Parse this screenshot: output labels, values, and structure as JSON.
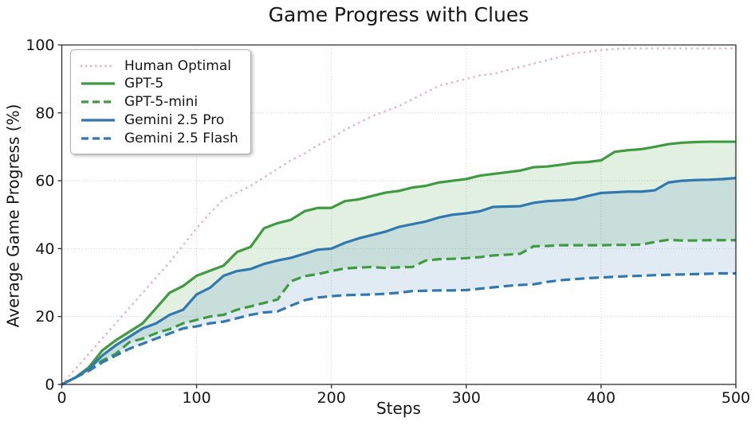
{
  "chart_data": {
    "type": "line",
    "title": "Game Progress with Clues",
    "xlabel": "Steps",
    "ylabel": "Average Game Progress (%)",
    "xlim": [
      0,
      500
    ],
    "ylim": [
      0,
      100
    ],
    "x_ticks": [
      0,
      100,
      200,
      300,
      400,
      500
    ],
    "y_ticks": [
      0,
      20,
      40,
      60,
      80,
      100
    ],
    "grid": true,
    "legend_position": "upper-left",
    "x": [
      0,
      10,
      20,
      30,
      40,
      50,
      60,
      70,
      80,
      90,
      100,
      110,
      120,
      130,
      140,
      150,
      160,
      170,
      180,
      190,
      200,
      210,
      220,
      230,
      240,
      250,
      260,
      270,
      280,
      290,
      300,
      310,
      320,
      330,
      340,
      350,
      360,
      370,
      380,
      390,
      400,
      410,
      420,
      430,
      440,
      450,
      460,
      470,
      480,
      490,
      500
    ],
    "series": [
      {
        "name": "Human Optimal",
        "color": "#efafbe",
        "style": "dotted",
        "width": 2.7,
        "values": [
          0,
          4.5,
          9,
          13.5,
          18,
          22.5,
          27,
          31.5,
          36,
          41,
          46,
          50.5,
          54.5,
          56.5,
          58.5,
          61,
          63.5,
          66,
          68,
          70.5,
          72.5,
          75,
          77,
          79,
          80.5,
          82,
          84,
          86,
          88,
          89,
          90,
          91,
          91.5,
          92.5,
          93.5,
          94.5,
          95.5,
          96.5,
          97.5,
          98,
          98.5,
          98.8,
          99,
          99,
          99,
          99,
          99,
          99,
          99,
          99,
          99
        ]
      },
      {
        "name": "GPT-5",
        "color": "#3f9b3f",
        "style": "solid",
        "width": 3.2,
        "values": [
          0,
          2,
          5,
          10,
          13,
          15.5,
          18,
          22.5,
          27,
          29,
          32,
          33.5,
          35,
          39,
          40.5,
          46,
          47.5,
          48.5,
          51,
          52,
          52,
          54,
          54.5,
          55.5,
          56.5,
          57,
          58,
          58.5,
          59.5,
          60,
          60.5,
          61.5,
          62,
          62.5,
          63,
          64,
          64.2,
          64.7,
          65.3,
          65.5,
          66,
          68.5,
          69,
          69.3,
          70,
          70.8,
          71.2,
          71.4,
          71.5,
          71.5,
          71.5
        ]
      },
      {
        "name": "GPT-5-mini",
        "color": "#3f9b3f",
        "style": "dashed",
        "width": 3.2,
        "values": [
          0,
          2,
          4.5,
          7,
          9,
          12.4,
          13.5,
          15.1,
          16.3,
          18,
          19,
          20,
          20.5,
          22,
          23,
          24,
          25,
          30.4,
          31.9,
          32.5,
          33.4,
          34.2,
          34.4,
          34.6,
          34.3,
          34.5,
          34.6,
          36.5,
          36.9,
          37,
          37.2,
          37.5,
          38,
          38.2,
          38.5,
          40.7,
          40.8,
          41,
          41,
          41,
          41,
          41.1,
          41.1,
          41.2,
          42,
          42.6,
          42.4,
          42.4,
          42.5,
          42.5,
          42.5
        ]
      },
      {
        "name": "Gemini 2.5 Pro",
        "color": "#3178b0",
        "style": "solid",
        "width": 3.2,
        "values": [
          0,
          2,
          4.5,
          8.5,
          11.5,
          14,
          16.5,
          18,
          20.5,
          22,
          26.5,
          28.5,
          32,
          33.4,
          34,
          35.5,
          36.5,
          37.3,
          38.5,
          39.7,
          40,
          41.7,
          43,
          44,
          45,
          46.4,
          47.2,
          48,
          49.2,
          50,
          50.4,
          51,
          52.3,
          52.4,
          52.5,
          53.5,
          54,
          54.2,
          54.5,
          55.5,
          56.4,
          56.6,
          56.8,
          56.8,
          57.2,
          59.5,
          60,
          60.2,
          60.3,
          60.5,
          60.8
        ]
      },
      {
        "name": "Gemini 2.5 Flash",
        "color": "#3178b0",
        "style": "dashed",
        "width": 3.2,
        "values": [
          0,
          2,
          4,
          6.5,
          8.5,
          10.5,
          12,
          13.5,
          15,
          16.5,
          17.1,
          18,
          18.5,
          19.5,
          20.5,
          21.2,
          21.5,
          23.2,
          24.8,
          25.6,
          26,
          26.3,
          26.4,
          26.5,
          26.7,
          27,
          27.5,
          27.6,
          27.7,
          27.7,
          27.8,
          28.2,
          28.6,
          29,
          29.3,
          29.5,
          30.2,
          30.7,
          31,
          31.3,
          31.5,
          31.7,
          31.9,
          32,
          32.2,
          32.3,
          32.4,
          32.5,
          32.6,
          32.7,
          32.7
        ]
      }
    ],
    "fills": [
      {
        "between": [
          "GPT-5",
          "GPT-5-mini"
        ],
        "color": "#3f9b3f",
        "opacity": 0.15
      },
      {
        "between": [
          "Gemini 2.5 Pro",
          "Gemini 2.5 Flash"
        ],
        "color": "#3178b0",
        "opacity": 0.15
      }
    ],
    "colors": {
      "grid": "#c9c9c9",
      "spine": "#2e2e2e",
      "text": "#161616"
    }
  }
}
